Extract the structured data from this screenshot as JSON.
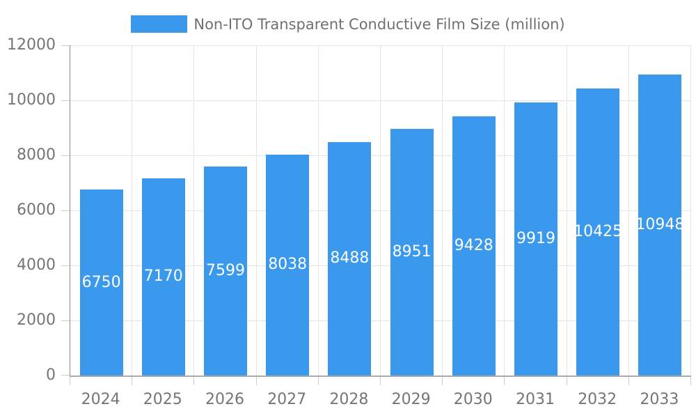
{
  "chart_data": {
    "type": "bar",
    "legend": "Non-ITO Transparent Conductive Film Size (million)",
    "categories": [
      "2024",
      "2025",
      "2026",
      "2027",
      "2028",
      "2029",
      "2030",
      "2031",
      "2032",
      "2033"
    ],
    "values": [
      6750,
      7170,
      7599,
      8038,
      8488,
      8951,
      9428,
      9919,
      10425,
      10948
    ],
    "yticks": [
      0,
      2000,
      4000,
      6000,
      8000,
      10000,
      12000
    ],
    "ylim": [
      0,
      12000
    ],
    "grid": true,
    "legend_position": "top",
    "bar_color": "#3A99EC",
    "bar_label_color": "#ffffff",
    "axis_label_color": "#757575",
    "legend_text_color": "#707070"
  }
}
